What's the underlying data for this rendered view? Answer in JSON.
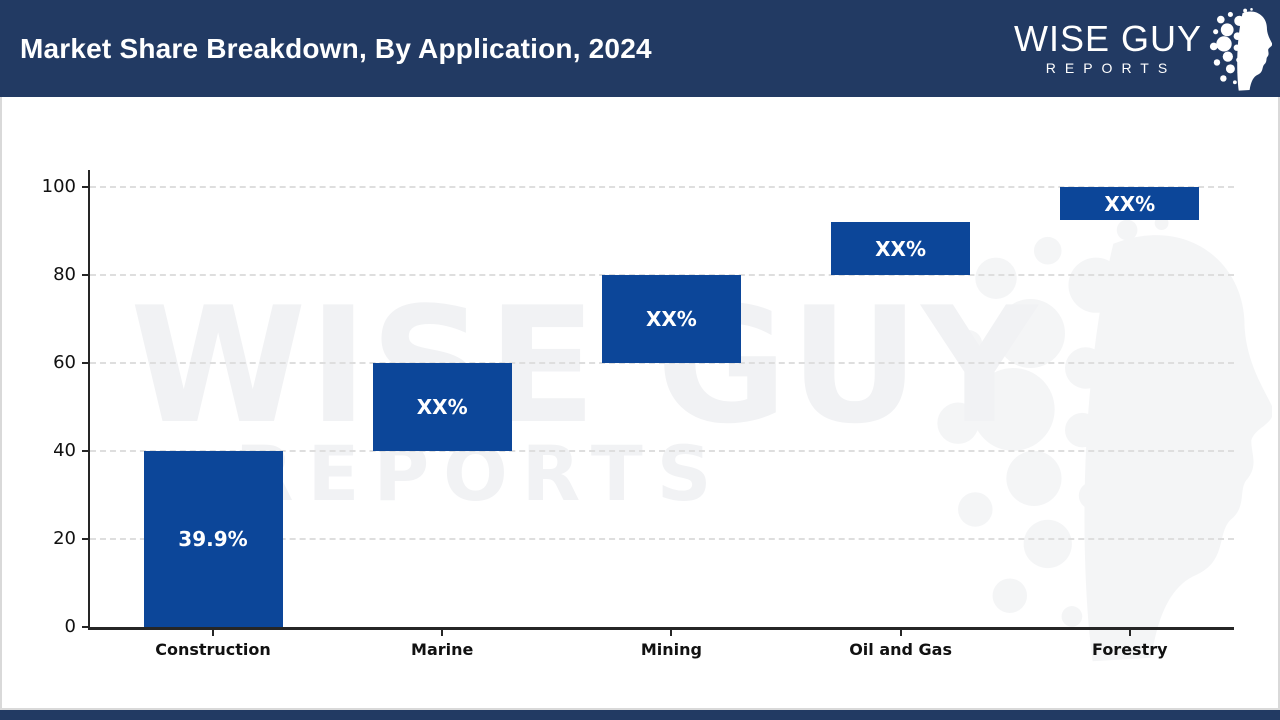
{
  "header": {
    "title": "Market Share Breakdown, By Application, 2024",
    "logo": {
      "line1": "WISE GUY",
      "line2": "REPORTS"
    }
  },
  "watermark": {
    "line1": "WISE GUY",
    "line2": "REPORTS"
  },
  "colors": {
    "header_bg": "#223a63",
    "bar_blue": "#0c4699",
    "bar_label": "#ffffff",
    "axis": "#262626",
    "gridline": "#dedede",
    "watermark_gray": "#f1f2f4"
  },
  "chart_data": {
    "type": "bar",
    "subtype": "waterfall",
    "title": "Market Share Breakdown, By Application, 2024",
    "categories": [
      "Construction",
      "Marine",
      "Mining",
      "Oil and Gas",
      "Forestry"
    ],
    "bar_labels": [
      "39.9%",
      "XX%",
      "XX%",
      "XX%",
      "XX%"
    ],
    "segments": [
      {
        "start": 0,
        "end": 39.9
      },
      {
        "start": 39.9,
        "end": 60
      },
      {
        "start": 60,
        "end": 80
      },
      {
        "start": 80,
        "end": 92
      },
      {
        "start": 92.5,
        "end": 100
      }
    ],
    "known_values": {
      "Construction": 39.9
    },
    "xlabel": "",
    "ylabel": "",
    "ylim": [
      0,
      100
    ],
    "yticks": [
      0,
      20,
      40,
      60,
      80,
      100
    ],
    "grid": "horizontal-dashed",
    "legend": "none",
    "bar_color": "#0c4699",
    "label_color": "#ffffff"
  }
}
